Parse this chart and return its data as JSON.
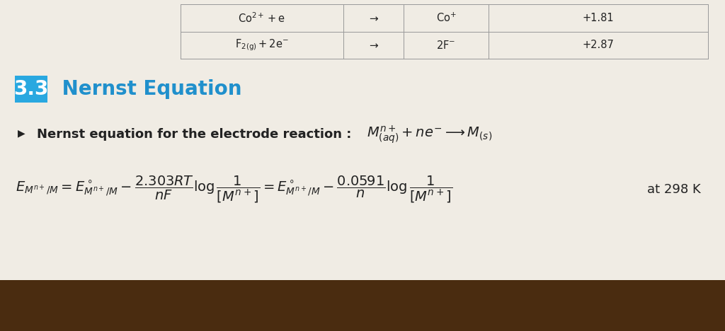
{
  "bg_color": "#c8b99a",
  "page_bg": "#f0ece4",
  "section_number": "3.3",
  "section_number_bg": "#29a8e0",
  "section_title": " Nernst Equation",
  "section_color": "#2090cc",
  "bullet_intro": "Nernst equation for the electrode reaction : ",
  "at_temp": "at 298 K",
  "title_fontsize": 20,
  "body_fontsize": 13,
  "text_color": "#222222",
  "table_border_color": "#999999",
  "spine_color": "#4a2c10"
}
